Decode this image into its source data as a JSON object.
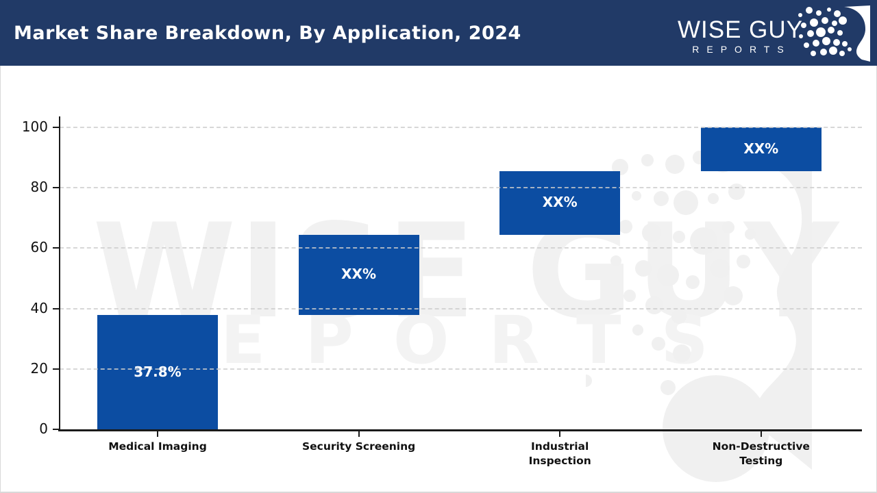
{
  "header": {
    "title": "Market Share Breakdown, By Application, 2024",
    "background_color": "#213a67"
  },
  "logo": {
    "line1": "WISE GUY",
    "line2": "REPORTS"
  },
  "watermark": {
    "line1": "WISE GUY",
    "line2": "REPORTS"
  },
  "chart_data": {
    "type": "bar",
    "subtype": "waterfall",
    "title": "Market Share Breakdown, By Application, 2024",
    "categories": [
      "Medical Imaging",
      "Security Screening",
      "Industrial\nInspection",
      "Non-Destructive\nTesting"
    ],
    "series": [
      {
        "name": "Market share (%)",
        "segments": [
          {
            "category": "Medical Imaging",
            "start": 0,
            "end": 37.8,
            "label": "37.8%"
          },
          {
            "category": "Security Screening",
            "start": 37.8,
            "end": 64.5,
            "label": "XX%"
          },
          {
            "category": "Industrial Inspection",
            "start": 64.5,
            "end": 85.5,
            "label": "XX%"
          },
          {
            "category": "Non-Destructive Testing",
            "start": 85.5,
            "end": 100,
            "label": "XX%"
          }
        ]
      }
    ],
    "xlabel": "",
    "ylabel": "",
    "ylim": [
      0,
      100
    ],
    "yticks": [
      0,
      20,
      40,
      60,
      80,
      100
    ],
    "grid": "horizontal-dashed",
    "legend": "none",
    "bar_color": "#0c4da2",
    "bar_label_color": "#ffffff"
  }
}
